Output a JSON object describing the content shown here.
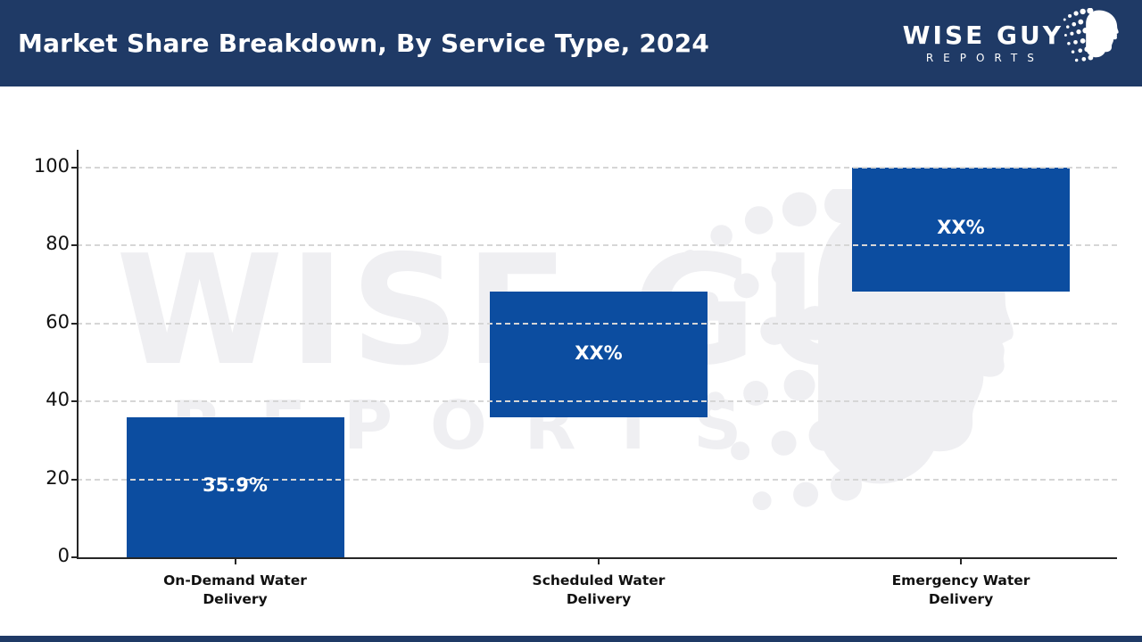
{
  "header": {
    "title": "Market Share Breakdown, By Service Type, 2024",
    "logo": {
      "line1": "WISE GUY",
      "line2": "REPORTS"
    }
  },
  "watermark": {
    "line1": "WISE GUY",
    "line2": "REPORTS"
  },
  "chart_data": {
    "type": "bar",
    "subtype": "waterfall",
    "title": "Market Share Breakdown, By Service Type, 2024",
    "categories": [
      {
        "line1": "On-Demand Water",
        "line2": "Delivery"
      },
      {
        "line1": "Scheduled Water",
        "line2": "Delivery"
      },
      {
        "line1": "Emergency Water",
        "line2": "Delivery"
      }
    ],
    "segments": [
      {
        "start": 0,
        "end": 35.9,
        "label": "35.9%"
      },
      {
        "start": 35.9,
        "end": 68.1,
        "label": "XX%"
      },
      {
        "start": 68.1,
        "end": 100,
        "label": "XX%"
      }
    ],
    "ylim": [
      0,
      100
    ],
    "yticks": [
      0,
      20,
      40,
      60,
      80,
      100
    ],
    "xlabel": "",
    "ylabel": "",
    "legend": "none",
    "grid": "horizontal-dashed",
    "colors": {
      "bar": "#0c4da0",
      "bar_label": "#ffffff",
      "gridline": "#d6d6d6",
      "axis": "#262626",
      "header_bg": "#1f3a66",
      "watermark": "#efeff2"
    }
  }
}
